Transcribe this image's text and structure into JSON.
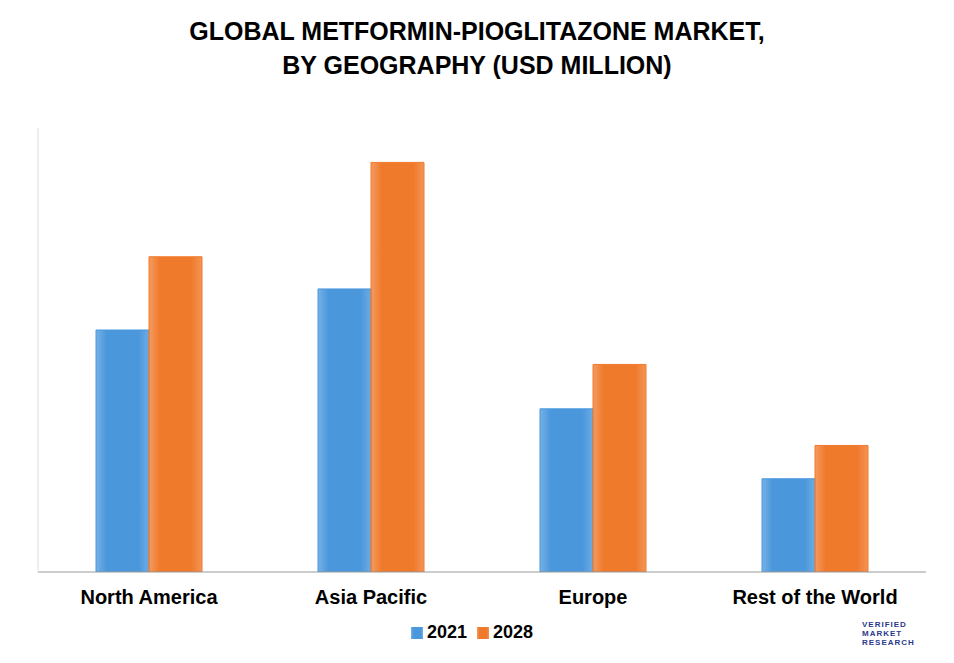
{
  "chart_data": {
    "type": "bar",
    "title": "GLOBAL METFORMIN-PIOGLITAZONE MARKET,\nBY GEOGRAPHY (USD MILLION)",
    "categories": [
      "North America",
      "Asia Pacific",
      "Europe",
      "Rest of the World"
    ],
    "series": [
      {
        "name": "2021",
        "color": "#4a97dc",
        "values": [
          218,
          255,
          147,
          84
        ]
      },
      {
        "name": "2028",
        "color": "#f07a2c",
        "values": [
          284,
          369,
          187,
          114
        ]
      }
    ],
    "ylim": [
      0,
      400
    ],
    "yticks": [],
    "tick_labels": "x",
    "grid": false,
    "legend": "bottom",
    "annotations": [
      "VERIFIED MARKET RESEARCH"
    ]
  }
}
